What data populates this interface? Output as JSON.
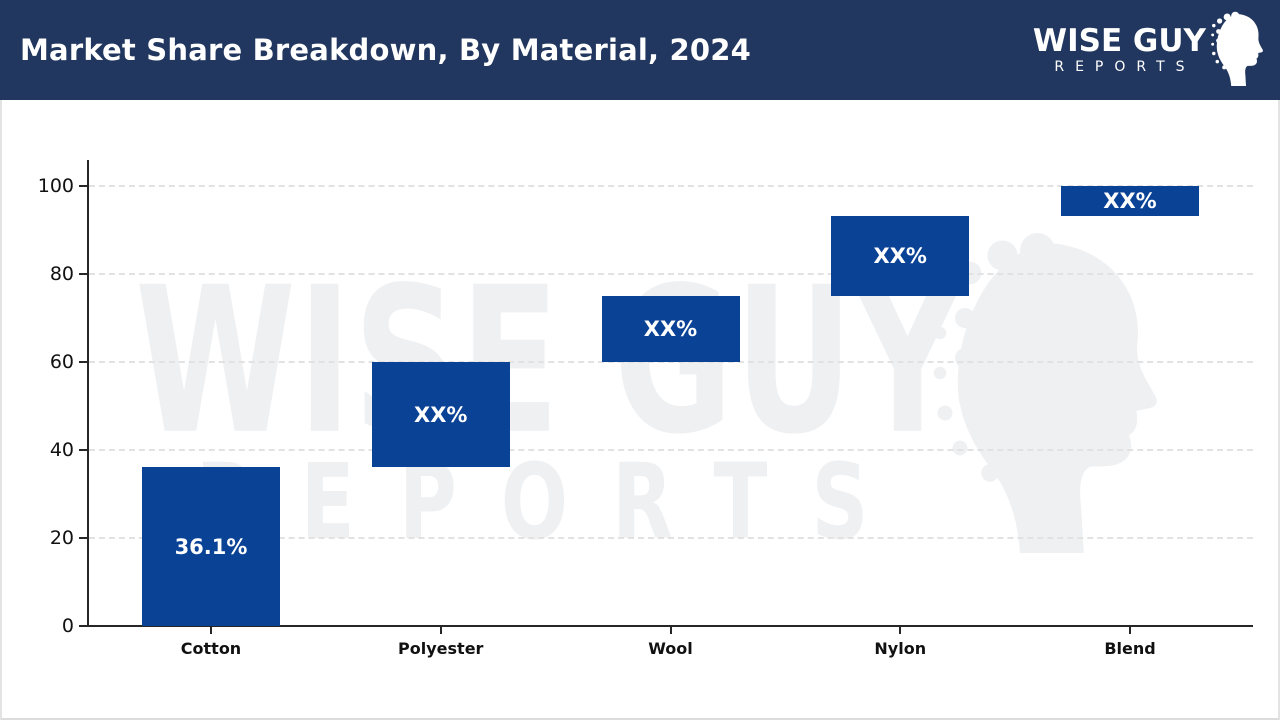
{
  "header": {
    "title": "Market Share Breakdown, By Material, 2024",
    "bg_color": "#22375f",
    "logo": {
      "line1": "WISE GUY",
      "line2": "REPORTS",
      "icon": "head-profile-dots-icon"
    }
  },
  "watermark": {
    "line1": "WISE GUY",
    "line2": "REPORTS"
  },
  "chart_data": {
    "type": "bar",
    "subtype": "waterfall",
    "title": "Market Share Breakdown, By Material, 2024",
    "xlabel": "",
    "ylabel": "",
    "categories": [
      "Cotton",
      "Polyester",
      "Wool",
      "Nylon",
      "Blend"
    ],
    "bars": [
      {
        "category": "Cotton",
        "start": 0,
        "end": 36.1,
        "value": 36.1,
        "label": "36.1%"
      },
      {
        "category": "Polyester",
        "start": 36.1,
        "end": 60.0,
        "value": 23.9,
        "label": "XX%"
      },
      {
        "category": "Wool",
        "start": 60.0,
        "end": 75.1,
        "value": 15.1,
        "label": "XX%"
      },
      {
        "category": "Nylon",
        "start": 75.1,
        "end": 93.2,
        "value": 18.1,
        "label": "XX%"
      },
      {
        "category": "Blend",
        "start": 93.2,
        "end": 100.0,
        "value": 6.8,
        "label": "XX%"
      }
    ],
    "yticks": [
      0,
      20,
      40,
      60,
      80,
      100
    ],
    "ylim": [
      0,
      106
    ],
    "grid": true,
    "legend": "none",
    "bar_color": "#0a4296",
    "bar_label_color": "#ffffff",
    "axis_color": "#262626",
    "grid_color": "#e2e2e2",
    "tick_label_color": "#111111"
  }
}
